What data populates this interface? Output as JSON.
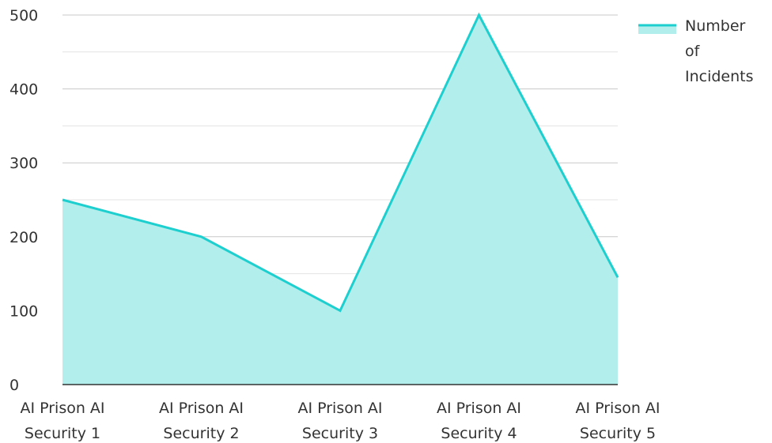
{
  "chart_data": {
    "type": "area",
    "categories": [
      [
        "AI Prison AI",
        "Security 1"
      ],
      [
        "AI Prison AI",
        "Security 2"
      ],
      [
        "AI Prison AI",
        "Security 3"
      ],
      [
        "AI Prison AI",
        "Security 4"
      ],
      [
        "AI Prison AI",
        "Security 5"
      ]
    ],
    "series": [
      {
        "name": "Number of Incidents",
        "values": [
          250,
          200,
          100,
          500,
          145
        ]
      }
    ],
    "ylim": [
      0,
      500
    ],
    "yticks": [
      0,
      100,
      200,
      300,
      400,
      500
    ],
    "grid": true,
    "legend_position": "top-right",
    "legend_lines": [
      "Number",
      "of",
      "Incidents"
    ],
    "colors": {
      "line": "#1ecfcf",
      "fill": "#b2eeec",
      "grid": "#cccccc",
      "axis": "#333333"
    }
  }
}
